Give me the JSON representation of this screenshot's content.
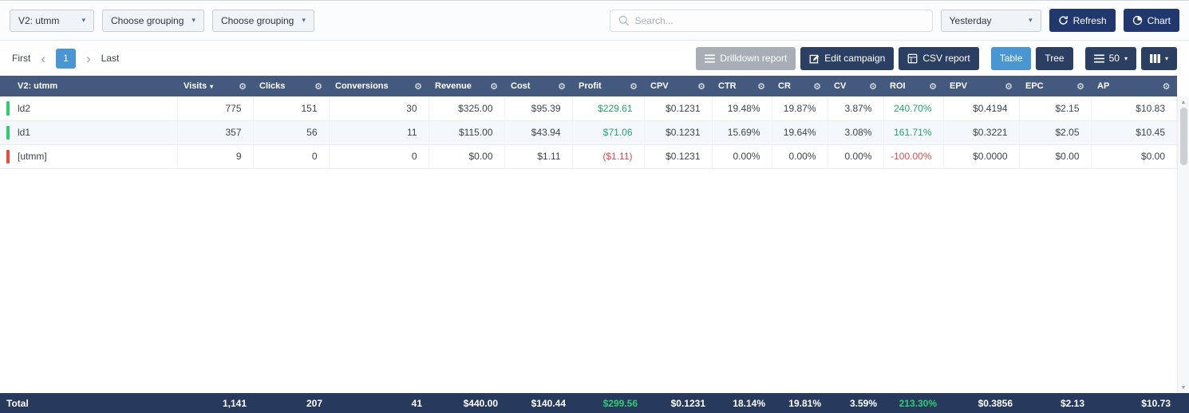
{
  "colors": {
    "header_bg": "#44597e",
    "total_bg": "#273a5e",
    "accent_blue": "#4a96d2",
    "dark_button": "#2b3f63",
    "indigo_button": "#20386e",
    "gray_button": "#a7aeb6",
    "positive": "#27a567",
    "negative": "#e4484d",
    "positive_bright": "#2ecc71",
    "indicator_green": "#2ecc71",
    "indicator_red": "#e74c3c"
  },
  "icons": {
    "gear": "⚙",
    "caret_down": "▾",
    "chevron_left": "‹",
    "chevron_right": "›",
    "scroll_up": "▲",
    "scroll_down": "▼",
    "sort_desc": "▾"
  },
  "toolbar": {
    "campaign_select": {
      "value": "V2: utmm"
    },
    "grouping_selects": [
      "Choose grouping",
      "Choose grouping"
    ],
    "search": {
      "placeholder": "Search..."
    },
    "date_select": {
      "value": "Yesterday"
    },
    "refresh_button": "Refresh",
    "chart_button": "Chart"
  },
  "pagination": {
    "first_label": "First",
    "current_page": "1",
    "last_label": "Last"
  },
  "actions": {
    "drilldown_button": "Drilldown report",
    "edit_campaign_button": "Edit campaign",
    "csv_button": "CSV report",
    "table_toggle": "Table",
    "tree_toggle": "Tree",
    "page_size": "50"
  },
  "table": {
    "first_column_header": "V2: utmm",
    "sorted_column": "Visits",
    "columns": [
      "Visits",
      "Clicks",
      "Conversions",
      "Revenue",
      "Cost",
      "Profit",
      "CPV",
      "CTR",
      "CR",
      "CV",
      "ROI",
      "EPV",
      "EPC",
      "AP"
    ],
    "rows": [
      {
        "name": "ld2",
        "indicator": "green",
        "values": [
          "775",
          "151",
          "30",
          "$325.00",
          "$95.39",
          "$229.61",
          "$0.1231",
          "19.48%",
          "19.87%",
          "3.87%",
          "240.70%",
          "$0.4194",
          "$2.15",
          "$10.83"
        ],
        "value_colors": {
          "5": "positive",
          "10": "positive"
        }
      },
      {
        "name": "ld1",
        "indicator": "green",
        "values": [
          "357",
          "56",
          "11",
          "$115.00",
          "$43.94",
          "$71.06",
          "$0.1231",
          "15.69%",
          "19.64%",
          "3.08%",
          "161.71%",
          "$0.3221",
          "$2.05",
          "$10.45"
        ],
        "value_colors": {
          "5": "positive",
          "10": "positive"
        }
      },
      {
        "name": "[utmm]",
        "indicator": "red",
        "values": [
          "9",
          "0",
          "0",
          "$0.00",
          "$1.11",
          "($1.11)",
          "$0.1231",
          "0.00%",
          "0.00%",
          "0.00%",
          "-100.00%",
          "$0.0000",
          "$0.00",
          "$0.00"
        ],
        "value_colors": {
          "5": "negative",
          "10": "negative"
        }
      }
    ],
    "total": {
      "label": "Total",
      "values": [
        "1,141",
        "207",
        "41",
        "$440.00",
        "$140.44",
        "$299.56",
        "$0.1231",
        "18.14%",
        "19.81%",
        "3.59%",
        "213.30%",
        "$0.3856",
        "$2.13",
        "$10.73"
      ],
      "value_colors": {
        "5": "positive_bright",
        "10": "positive_bright"
      }
    }
  }
}
